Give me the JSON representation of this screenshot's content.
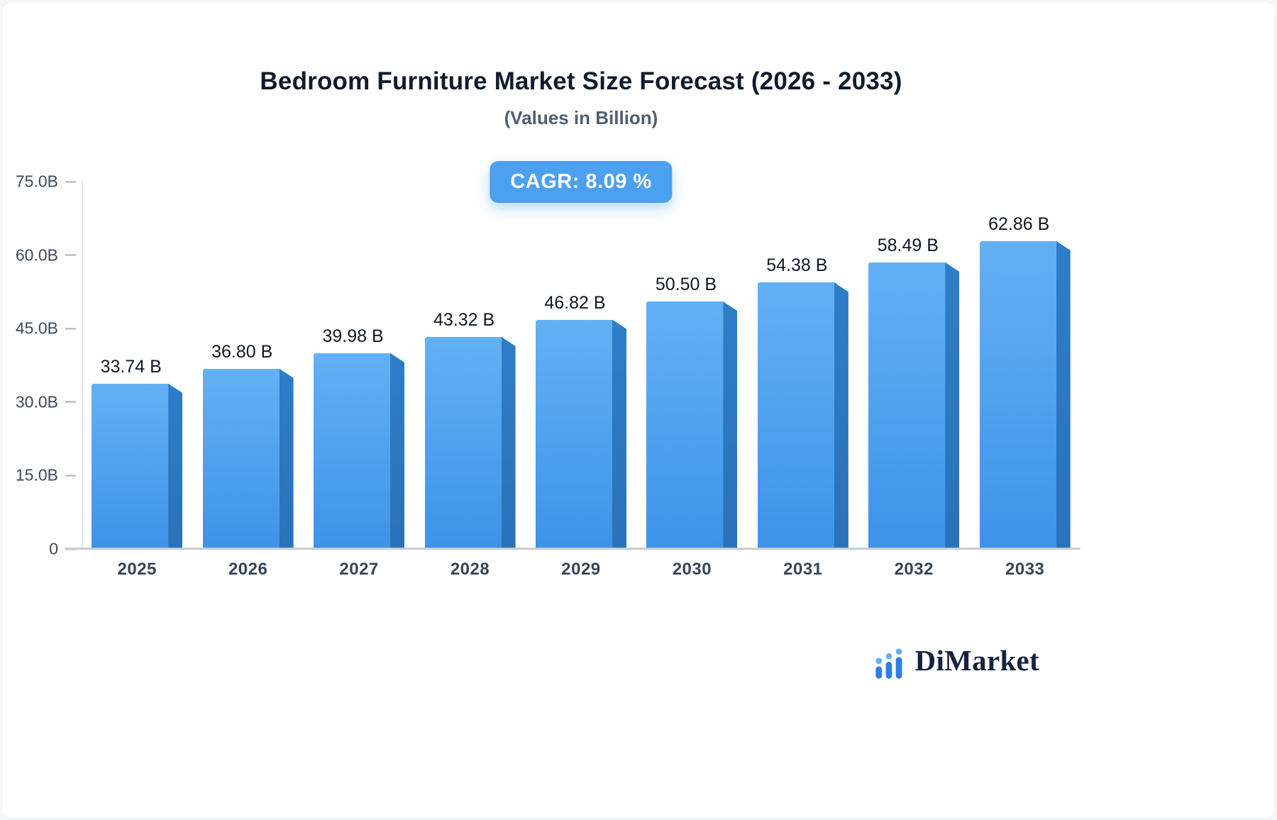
{
  "chart_data": {
    "type": "bar",
    "title": "Bedroom Furniture Market Size Forecast (2026 - 2033)",
    "subtitle": "(Values in Billion)",
    "cagr_badge": "CAGR: 8.09 %",
    "categories": [
      "2025",
      "2026",
      "2027",
      "2028",
      "2029",
      "2030",
      "2031",
      "2032",
      "2033"
    ],
    "values": [
      33.74,
      36.8,
      39.98,
      43.32,
      46.82,
      50.5,
      54.38,
      58.49,
      62.86
    ],
    "value_labels": [
      "33.74 B",
      "36.80 B",
      "39.98 B",
      "43.32 B",
      "46.82 B",
      "50.50 B",
      "54.38 B",
      "58.49 B",
      "62.86 B"
    ],
    "xlabel": "",
    "ylabel": "",
    "ylim": [
      0,
      75
    ],
    "yticks": [
      {
        "value": 0,
        "label": "0"
      },
      {
        "value": 15,
        "label": "15.0B"
      },
      {
        "value": 30,
        "label": "30.0B"
      },
      {
        "value": 45,
        "label": "45.0B"
      },
      {
        "value": 60,
        "label": "60.0B"
      },
      {
        "value": 75,
        "label": "75.0B"
      }
    ],
    "grid": false,
    "legend": false,
    "bar_colors": {
      "face_top": "#63b1f4",
      "face_bottom": "#3e92e9",
      "side_top": "#2e7dc8",
      "side_bottom": "#2a72b9"
    }
  },
  "colors": {
    "badge_background": "#4ba0ef",
    "title_text": "#101b2c",
    "subtitle_text": "#525e6e",
    "axis_line": "#c7ccd2",
    "brand_text": "#16233e",
    "brand_icon_bar": "#2d7fe0",
    "brand_icon_dot": "#66aef5"
  },
  "logo": {
    "brand": "DiMarket",
    "icon": "bar-chart-dots-icon"
  }
}
